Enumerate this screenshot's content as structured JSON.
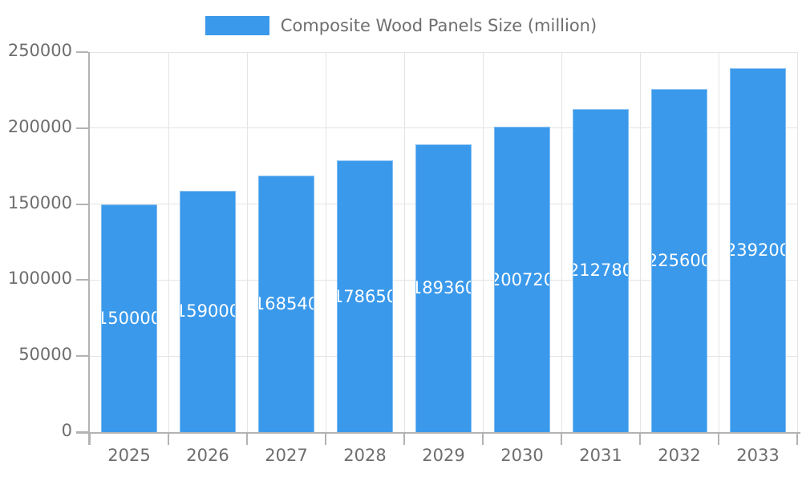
{
  "chart_data": {
    "type": "bar",
    "title": "Composite Wood Panels Size (million)",
    "legend_position": "top",
    "categories": [
      "2025",
      "2026",
      "2027",
      "2028",
      "2029",
      "2030",
      "2031",
      "2032",
      "2033"
    ],
    "values": [
      150000,
      159000,
      168540,
      178650,
      189360,
      200720,
      212780,
      225600,
      239200
    ],
    "value_labels": [
      "150000",
      "159000",
      "168540",
      "178650",
      "189360",
      "200720",
      "212780",
      "225600",
      "239200"
    ],
    "xlabel": "",
    "ylabel": "",
    "ylim": [
      0,
      250000
    ],
    "ytick_step": 50000,
    "ytick_labels": [
      "0",
      "50000",
      "100000",
      "150000",
      "200000",
      "250000"
    ],
    "grid": "on",
    "colors": {
      "bar": "#3A99EB",
      "grid": "#E4E4E4",
      "axis": "#B3B3B3",
      "tick_label": "#6E6E6E",
      "legend_text": "#6E6E6E",
      "value_label": "#FFFFFF",
      "background": "#FFFFFF"
    }
  }
}
